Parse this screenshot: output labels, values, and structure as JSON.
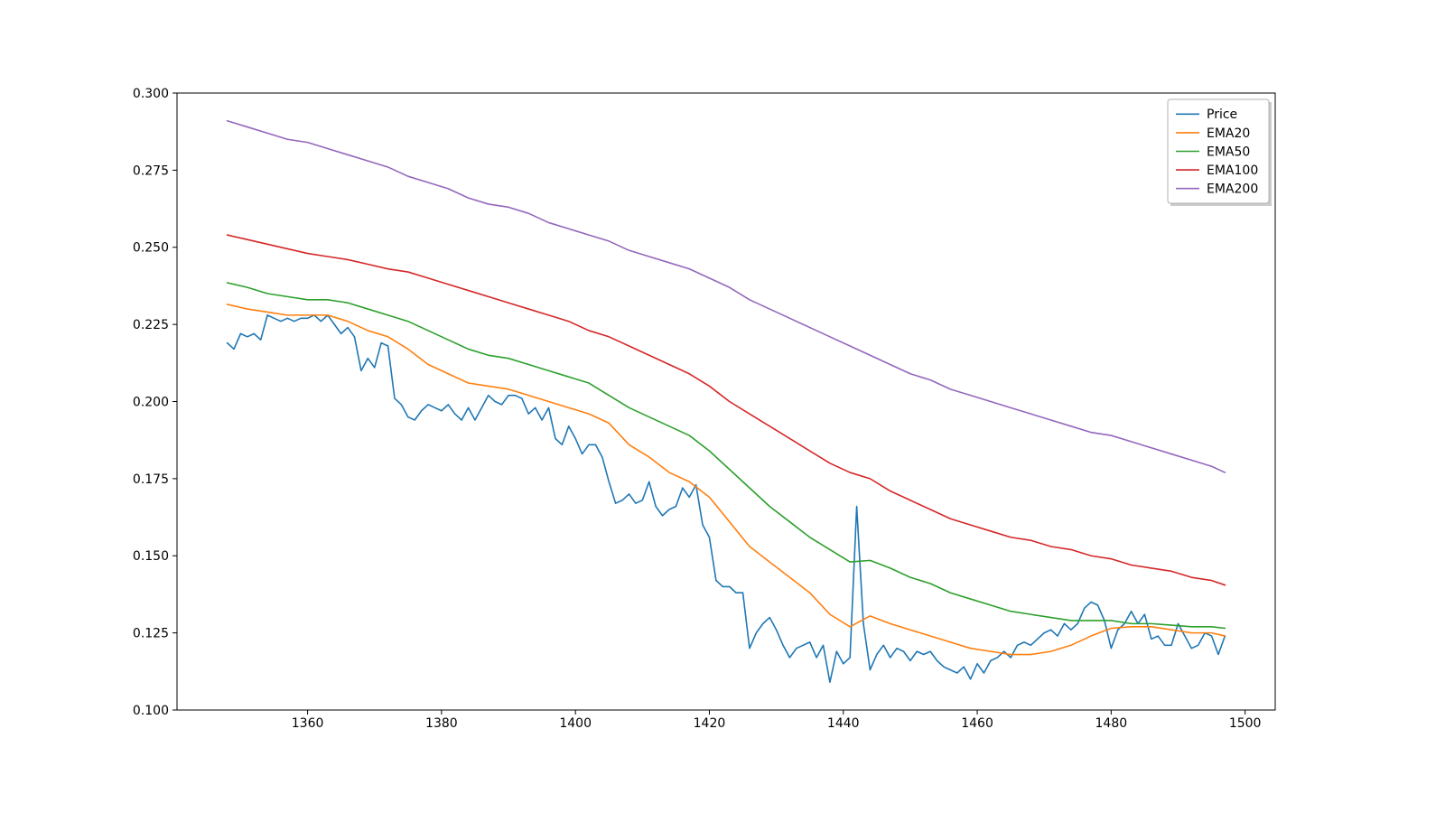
{
  "figure": {
    "background": "#ffffff"
  },
  "chart_data": {
    "type": "line",
    "title": "",
    "xlabel": "",
    "ylabel": "",
    "xlim": [
      1340.5,
      1504.5
    ],
    "ylim": [
      0.1,
      0.3
    ],
    "x_ticks": [
      1360,
      1380,
      1400,
      1420,
      1440,
      1460,
      1480,
      1500
    ],
    "x_tick_labels": [
      "1360",
      "1380",
      "1400",
      "1420",
      "1440",
      "1460",
      "1480",
      "1500"
    ],
    "y_ticks": [
      0.1,
      0.125,
      0.15,
      0.175,
      0.2,
      0.225,
      0.25,
      0.275,
      0.3
    ],
    "y_tick_labels": [
      "0.100",
      "0.125",
      "0.150",
      "0.175",
      "0.200",
      "0.225",
      "0.250",
      "0.275",
      "0.300"
    ],
    "grid": false,
    "legend": {
      "position": "upper-right",
      "entries": [
        "Price",
        "EMA20",
        "EMA50",
        "EMA100",
        "EMA200"
      ]
    },
    "series": [
      {
        "name": "Price",
        "color": "#1f77b4",
        "x_start": 1348,
        "x_step": 1,
        "y": [
          0.219,
          0.217,
          0.222,
          0.221,
          0.222,
          0.22,
          0.228,
          0.227,
          0.226,
          0.227,
          0.226,
          0.227,
          0.227,
          0.228,
          0.226,
          0.228,
          0.225,
          0.222,
          0.224,
          0.221,
          0.21,
          0.214,
          0.211,
          0.219,
          0.218,
          0.201,
          0.199,
          0.195,
          0.194,
          0.197,
          0.199,
          0.198,
          0.197,
          0.199,
          0.196,
          0.194,
          0.198,
          0.194,
          0.198,
          0.202,
          0.2,
          0.199,
          0.202,
          0.202,
          0.201,
          0.196,
          0.198,
          0.194,
          0.198,
          0.188,
          0.186,
          0.192,
          0.188,
          0.183,
          0.186,
          0.186,
          0.182,
          0.174,
          0.167,
          0.168,
          0.17,
          0.167,
          0.168,
          0.174,
          0.166,
          0.163,
          0.165,
          0.166,
          0.172,
          0.169,
          0.173,
          0.16,
          0.156,
          0.142,
          0.14,
          0.14,
          0.138,
          0.138,
          0.12,
          0.125,
          0.128,
          0.13,
          0.126,
          0.121,
          0.117,
          0.12,
          0.121,
          0.122,
          0.117,
          0.121,
          0.109,
          0.119,
          0.115,
          0.117,
          0.166,
          0.128,
          0.113,
          0.118,
          0.121,
          0.117,
          0.12,
          0.119,
          0.116,
          0.119,
          0.118,
          0.119,
          0.116,
          0.114,
          0.113,
          0.112,
          0.114,
          0.11,
          0.115,
          0.112,
          0.116,
          0.117,
          0.119,
          0.117,
          0.121,
          0.122,
          0.121,
          0.123,
          0.125,
          0.126,
          0.124,
          0.128,
          0.126,
          0.128,
          0.133,
          0.135,
          0.134,
          0.129,
          0.12,
          0.126,
          0.128,
          0.132,
          0.128,
          0.131,
          0.123,
          0.124,
          0.121,
          0.121,
          0.128,
          0.124,
          0.12,
          0.121,
          0.125,
          0.124,
          0.118,
          0.124
        ]
      },
      {
        "name": "EMA20",
        "color": "#ff7f0e",
        "x": [
          1348,
          1351,
          1354,
          1357,
          1360,
          1363,
          1366,
          1369,
          1372,
          1375,
          1378,
          1381,
          1384,
          1387,
          1390,
          1393,
          1396,
          1399,
          1402,
          1405,
          1408,
          1411,
          1414,
          1417,
          1420,
          1423,
          1426,
          1429,
          1432,
          1435,
          1438,
          1441,
          1444,
          1447,
          1450,
          1453,
          1456,
          1459,
          1462,
          1465,
          1468,
          1471,
          1474,
          1477,
          1480,
          1483,
          1486,
          1489,
          1492,
          1495,
          1497
        ],
        "y": [
          0.2315,
          0.23,
          0.229,
          0.228,
          0.228,
          0.228,
          0.226,
          0.223,
          0.221,
          0.217,
          0.212,
          0.209,
          0.206,
          0.205,
          0.204,
          0.202,
          0.2,
          0.198,
          0.196,
          0.193,
          0.186,
          0.182,
          0.177,
          0.174,
          0.169,
          0.161,
          0.153,
          0.148,
          0.143,
          0.138,
          0.131,
          0.127,
          0.1305,
          0.128,
          0.126,
          0.124,
          0.122,
          0.12,
          0.119,
          0.118,
          0.118,
          0.119,
          0.121,
          0.124,
          0.1265,
          0.127,
          0.127,
          0.126,
          0.125,
          0.125,
          0.124
        ]
      },
      {
        "name": "EMA50",
        "color": "#2ca02c",
        "x": [
          1348,
          1351,
          1354,
          1357,
          1360,
          1363,
          1366,
          1369,
          1372,
          1375,
          1378,
          1381,
          1384,
          1387,
          1390,
          1393,
          1396,
          1399,
          1402,
          1405,
          1408,
          1411,
          1414,
          1417,
          1420,
          1423,
          1426,
          1429,
          1432,
          1435,
          1438,
          1441,
          1444,
          1447,
          1450,
          1453,
          1456,
          1459,
          1462,
          1465,
          1468,
          1471,
          1474,
          1477,
          1480,
          1483,
          1486,
          1489,
          1492,
          1495,
          1497
        ],
        "y": [
          0.2385,
          0.237,
          0.235,
          0.234,
          0.233,
          0.233,
          0.232,
          0.23,
          0.228,
          0.226,
          0.223,
          0.22,
          0.217,
          0.215,
          0.214,
          0.212,
          0.21,
          0.208,
          0.206,
          0.202,
          0.198,
          0.195,
          0.192,
          0.189,
          0.184,
          0.178,
          0.172,
          0.166,
          0.161,
          0.156,
          0.152,
          0.148,
          0.1485,
          0.146,
          0.143,
          0.141,
          0.138,
          0.136,
          0.134,
          0.132,
          0.131,
          0.13,
          0.129,
          0.129,
          0.129,
          0.128,
          0.128,
          0.1275,
          0.127,
          0.127,
          0.1265
        ]
      },
      {
        "name": "EMA100",
        "color": "#d62728",
        "x": [
          1348,
          1351,
          1354,
          1357,
          1360,
          1363,
          1366,
          1369,
          1372,
          1375,
          1378,
          1381,
          1384,
          1387,
          1390,
          1393,
          1396,
          1399,
          1402,
          1405,
          1408,
          1411,
          1414,
          1417,
          1420,
          1423,
          1426,
          1429,
          1432,
          1435,
          1438,
          1441,
          1444,
          1447,
          1450,
          1453,
          1456,
          1459,
          1462,
          1465,
          1468,
          1471,
          1474,
          1477,
          1480,
          1483,
          1486,
          1489,
          1492,
          1495,
          1497
        ],
        "y": [
          0.254,
          0.2525,
          0.251,
          0.2495,
          0.248,
          0.247,
          0.246,
          0.2445,
          0.243,
          0.242,
          0.24,
          0.238,
          0.236,
          0.234,
          0.232,
          0.23,
          0.228,
          0.226,
          0.223,
          0.221,
          0.218,
          0.215,
          0.212,
          0.209,
          0.205,
          0.2,
          0.196,
          0.192,
          0.188,
          0.184,
          0.18,
          0.177,
          0.175,
          0.171,
          0.168,
          0.165,
          0.162,
          0.16,
          0.158,
          0.156,
          0.155,
          0.153,
          0.152,
          0.15,
          0.149,
          0.147,
          0.146,
          0.145,
          0.143,
          0.142,
          0.1405
        ]
      },
      {
        "name": "EMA200",
        "color": "#9467bd",
        "x": [
          1348,
          1351,
          1354,
          1357,
          1360,
          1363,
          1366,
          1369,
          1372,
          1375,
          1378,
          1381,
          1384,
          1387,
          1390,
          1393,
          1396,
          1399,
          1402,
          1405,
          1408,
          1411,
          1414,
          1417,
          1420,
          1423,
          1426,
          1429,
          1432,
          1435,
          1438,
          1441,
          1444,
          1447,
          1450,
          1453,
          1456,
          1459,
          1462,
          1465,
          1468,
          1471,
          1474,
          1477,
          1480,
          1483,
          1486,
          1489,
          1492,
          1495,
          1497
        ],
        "y": [
          0.291,
          0.289,
          0.287,
          0.285,
          0.284,
          0.282,
          0.28,
          0.278,
          0.276,
          0.273,
          0.271,
          0.269,
          0.266,
          0.264,
          0.263,
          0.261,
          0.258,
          0.256,
          0.254,
          0.252,
          0.249,
          0.247,
          0.245,
          0.243,
          0.24,
          0.237,
          0.233,
          0.23,
          0.227,
          0.224,
          0.221,
          0.218,
          0.215,
          0.212,
          0.209,
          0.207,
          0.204,
          0.202,
          0.2,
          0.198,
          0.196,
          0.194,
          0.192,
          0.19,
          0.189,
          0.187,
          0.185,
          0.183,
          0.181,
          0.179,
          0.177
        ]
      }
    ],
    "colors": {
      "axis": "#000000",
      "legend_border": "#b0b0b0",
      "legend_shadow": "#cccccc",
      "background": "#ffffff"
    }
  }
}
